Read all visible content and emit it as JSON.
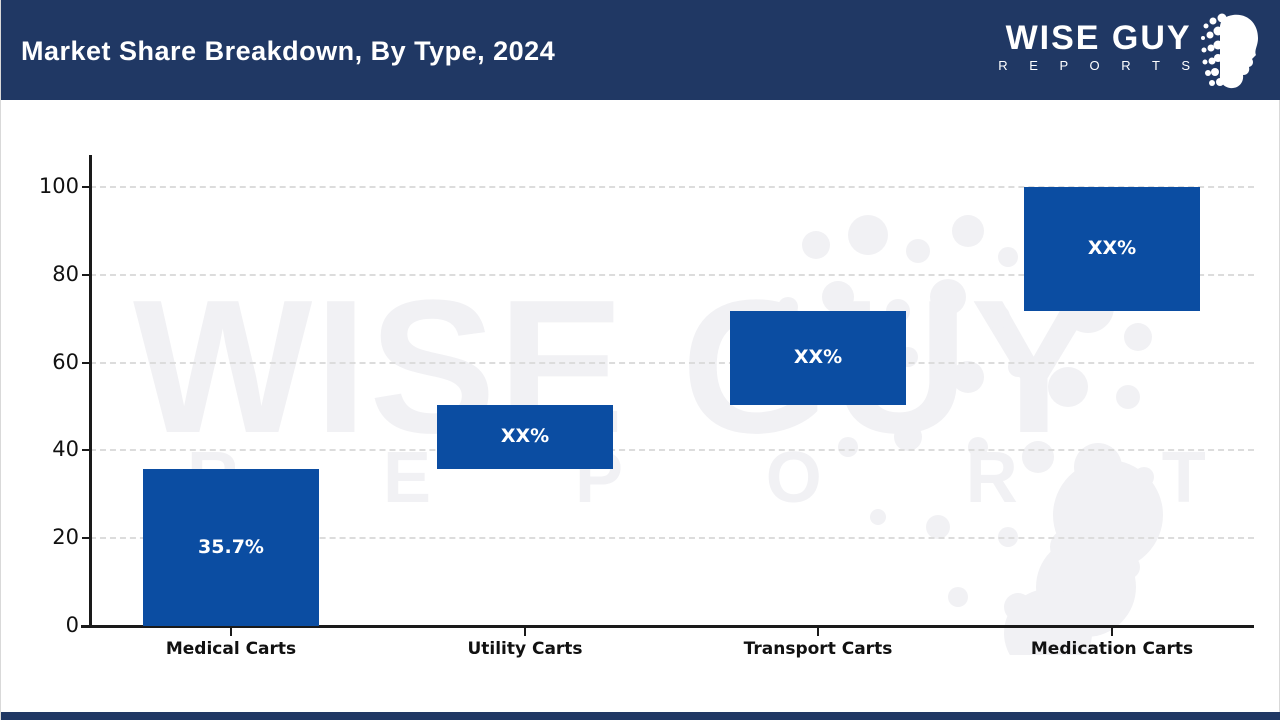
{
  "header": {
    "title": "Market Share Breakdown, By Type, 2024",
    "bg_color": "#203864",
    "logo": {
      "line1": "WISE GUY",
      "line2": "R E P O R T S"
    }
  },
  "footer": {
    "bg_color": "#203864"
  },
  "watermark": {
    "line1": "WISE GUY",
    "line2": "R E P O R T S",
    "color": "#f1f1f4"
  },
  "chart_data": {
    "type": "bar",
    "subtype": "waterfall",
    "title": "Market Share Breakdown, By Type, 2024",
    "categories": [
      "Medical Carts",
      "Utility Carts",
      "Transport Carts",
      "Medication Carts"
    ],
    "segments": [
      {
        "category": "Medical Carts",
        "start": 0,
        "end": 35.7,
        "label": "35.7%"
      },
      {
        "category": "Utility Carts",
        "start": 35.7,
        "end": 50.3,
        "label": "XX%"
      },
      {
        "category": "Transport Carts",
        "start": 50.3,
        "end": 71.7,
        "label": "XX%"
      },
      {
        "category": "Medication Carts",
        "start": 71.7,
        "end": 100,
        "label": "XX%"
      }
    ],
    "y_ticks": [
      0,
      20,
      40,
      60,
      80,
      100
    ],
    "ylim": [
      0,
      107
    ],
    "xlabel": "",
    "ylabel": "",
    "grid": "horizontal-dashed",
    "grid_color": "#dcdcdc",
    "bar_color": "#0b4da2",
    "bar_label_color": "#ffffff",
    "axis_color": "#1a1a1a",
    "legend": "none"
  }
}
